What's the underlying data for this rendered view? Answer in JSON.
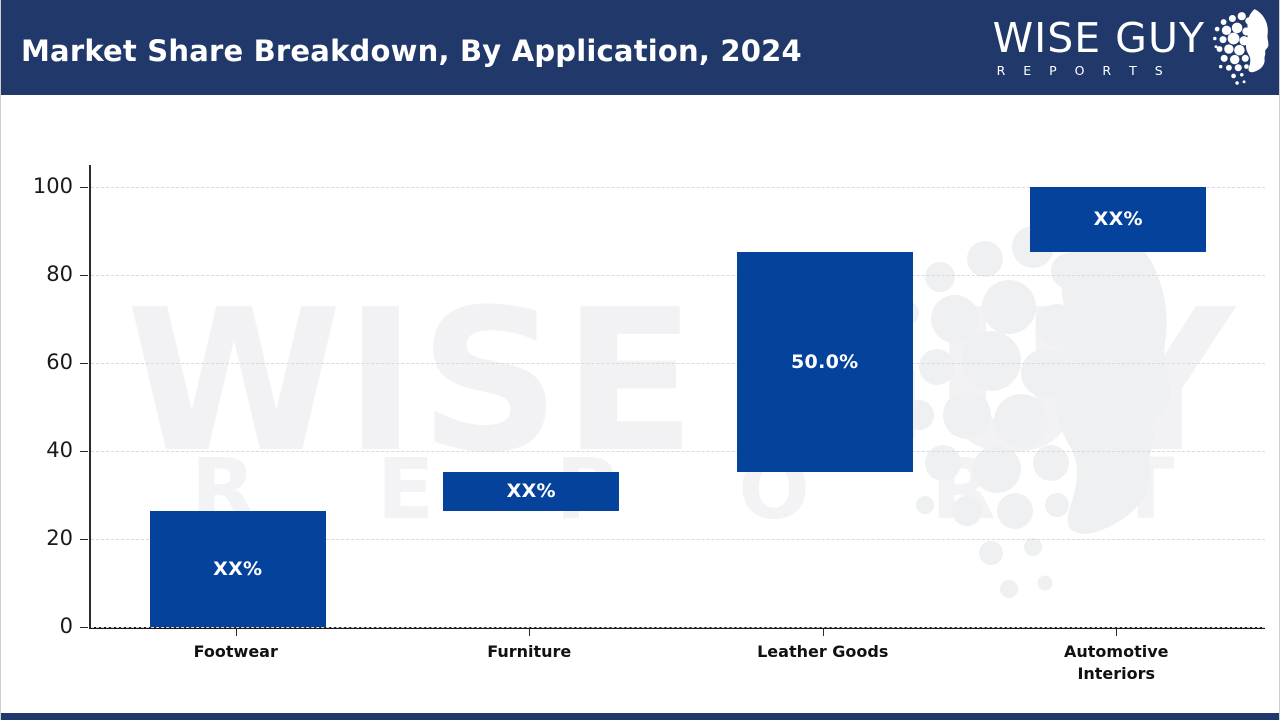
{
  "header": {
    "title": "Market Share Breakdown, By Application, 2024",
    "bg_color": "#21386b",
    "logo": {
      "name": "WISE GUY",
      "sub": "R E P O R T S"
    }
  },
  "footer": {
    "bg_color": "#21386b"
  },
  "watermark": {
    "text": "WISE GUY",
    "sub": "R E P O R T S"
  },
  "chart_data": {
    "type": "bar",
    "variant": "floating-segment-bars (market share breakdown, segments stack to 100%)",
    "title": "Market Share Breakdown, By Application, 2024",
    "categories": [
      "Footwear",
      "Furniture",
      "Leather Goods",
      "Automotive Interiors"
    ],
    "segments": [
      {
        "category": "Footwear",
        "start": 0,
        "end": 26.4,
        "value": 26.4,
        "label": "XX%"
      },
      {
        "category": "Furniture",
        "start": 26.4,
        "end": 35.3,
        "value": 8.9,
        "label": "XX%"
      },
      {
        "category": "Leather Goods",
        "start": 35.3,
        "end": 85.3,
        "value": 50.0,
        "label": "50.0%"
      },
      {
        "category": "Automotive Interiors",
        "start": 85.3,
        "end": 100,
        "value": 14.7,
        "label": "XX%"
      }
    ],
    "yticks": [
      0,
      20,
      40,
      60,
      80,
      100
    ],
    "ylim": [
      0,
      105
    ],
    "xlabel": "",
    "ylabel": "",
    "grid": "horizontal dashed",
    "legend": "none",
    "bar_color": "#05429b",
    "bar_label_color": "#ffffff",
    "axis_color": "#1a1a1a",
    "gridline_color": "#d9d9d9"
  }
}
